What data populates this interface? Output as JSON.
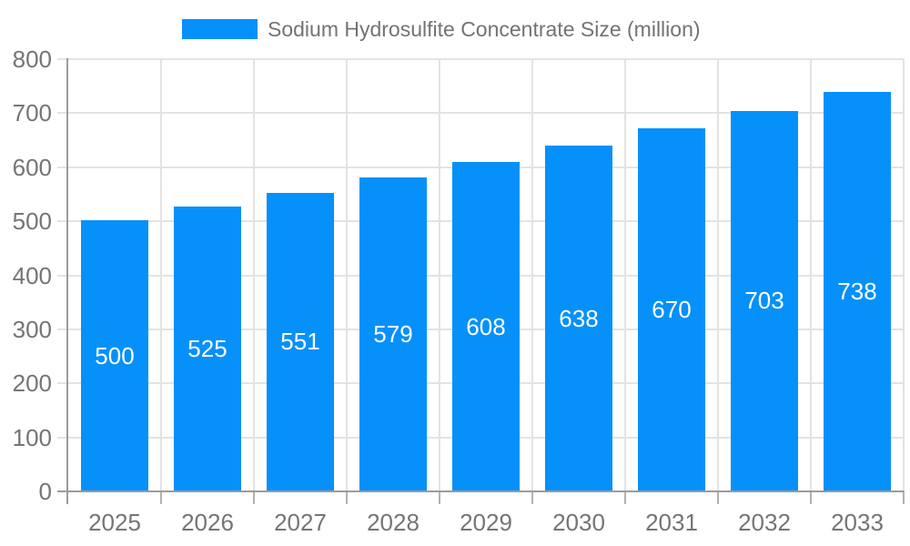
{
  "legend": {
    "label": "Sodium Hydrosulfite Concentrate Size (million)"
  },
  "chart_data": {
    "type": "bar",
    "title": "Sodium Hydrosulfite Concentrate Size (million)",
    "categories": [
      "2025",
      "2026",
      "2027",
      "2028",
      "2029",
      "2030",
      "2031",
      "2032",
      "2033"
    ],
    "values": [
      500,
      525,
      551,
      579,
      608,
      638,
      670,
      703,
      738
    ],
    "xlabel": "",
    "ylabel": "",
    "ylim": [
      0,
      800
    ],
    "ytick_interval": 100,
    "grid": true,
    "legend_position": "top",
    "value_labels": "inside-middle",
    "colors": {
      "bar": "#0690fa",
      "bar_label_text": "#ffffff",
      "axis_line": "#9b9b9b",
      "tick_line": "#b2b2b2",
      "grid_line": "#e3e3e3",
      "axis_text": "#757575",
      "legend_text": "#737373",
      "background": "#ffffff"
    }
  }
}
